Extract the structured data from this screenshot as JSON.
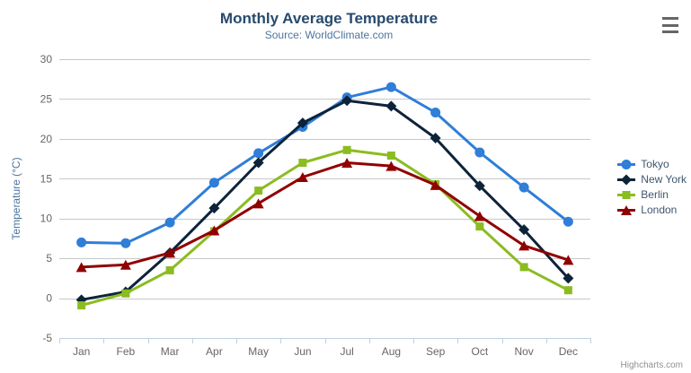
{
  "header": {
    "title": "Monthly Average Temperature",
    "subtitle": "Source: WorldClimate.com"
  },
  "chart_data": {
    "type": "line",
    "title": "Monthly Average Temperature",
    "subtitle": "Source: WorldClimate.com",
    "categories": [
      "Jan",
      "Feb",
      "Mar",
      "Apr",
      "May",
      "Jun",
      "Jul",
      "Aug",
      "Sep",
      "Oct",
      "Nov",
      "Dec"
    ],
    "series": [
      {
        "name": "Tokyo",
        "color": "#2f7ed8",
        "marker": "circle",
        "values": [
          7.0,
          6.9,
          9.5,
          14.5,
          18.2,
          21.5,
          25.2,
          26.5,
          23.3,
          18.3,
          13.9,
          9.6
        ]
      },
      {
        "name": "New York",
        "color": "#0d233a",
        "marker": "diamond",
        "values": [
          -0.2,
          0.8,
          5.7,
          11.3,
          17.0,
          22.0,
          24.8,
          24.1,
          20.1,
          14.1,
          8.6,
          2.5
        ]
      },
      {
        "name": "Berlin",
        "color": "#8bbc21",
        "marker": "square",
        "values": [
          -0.9,
          0.6,
          3.5,
          8.4,
          13.5,
          17.0,
          18.6,
          17.9,
          14.3,
          9.0,
          3.9,
          1.0
        ]
      },
      {
        "name": "London",
        "color": "#910000",
        "marker": "triangle",
        "values": [
          3.9,
          4.2,
          5.7,
          8.5,
          11.9,
          15.2,
          17.0,
          16.6,
          14.2,
          10.3,
          6.6,
          4.8
        ]
      }
    ],
    "xlabel": "",
    "ylabel": "Temperature (°C)",
    "ylim": [
      -5,
      30
    ],
    "yticks": [
      -5,
      0,
      5,
      10,
      15,
      20,
      25,
      30
    ],
    "grid": true,
    "legend_position": "right"
  },
  "theme": {
    "title_color": "#274b6d",
    "subtitle_color": "#4d759e",
    "axis_title_color": "#4d759e",
    "axis_label_color": "#666666",
    "grid_color": "#c8c8c8",
    "axis_line_color": "#c0d0e0",
    "legend_text_color": "#3e576f",
    "credits_color": "#909090",
    "export_icon_color": "#666666"
  },
  "credits": {
    "label": "Highcharts.com"
  }
}
